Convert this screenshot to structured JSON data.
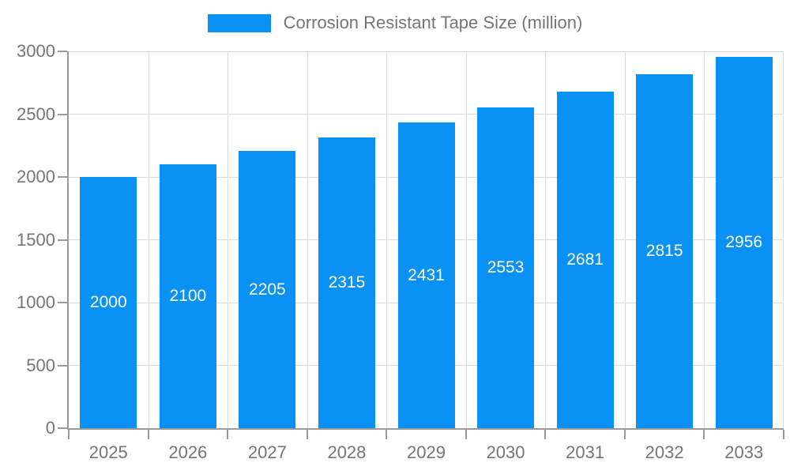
{
  "chart_data": {
    "type": "bar",
    "title": "Corrosion Resistant Tape Size (million)",
    "categories": [
      "2025",
      "2026",
      "2027",
      "2028",
      "2029",
      "2030",
      "2031",
      "2032",
      "2033"
    ],
    "values": [
      2000,
      2100,
      2205,
      2315,
      2431,
      2553,
      2681,
      2815,
      2956
    ],
    "xlabel": "",
    "ylabel": "",
    "ylim": [
      0,
      3000
    ],
    "ytick_step": 500,
    "ytick_labels": [
      "0",
      "500",
      "1000",
      "1500",
      "2000",
      "2500",
      "3000"
    ],
    "grid": "horizontal and vertical light-gray gridlines",
    "legend_position": "top-center",
    "bar_labels_inside": true,
    "colors": {
      "bar": "#0991f3",
      "bar_label": "#ffffff",
      "axis": "#9a9a9a",
      "grid": "#dcdcdc",
      "tick_text": "#757575",
      "background": "#ffffff"
    }
  }
}
